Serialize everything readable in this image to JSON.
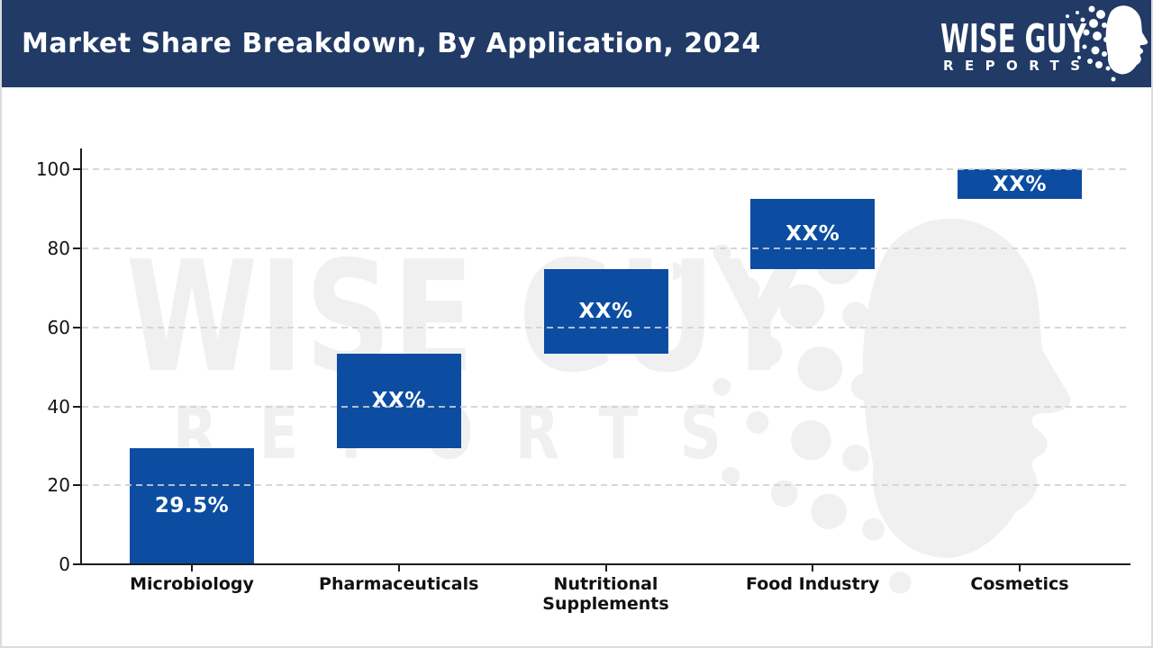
{
  "header": {
    "title": "Market Share Breakdown, By Application, 2024",
    "logo": {
      "line1": "WISE GUY",
      "line2": "REPORTS"
    }
  },
  "watermark": {
    "line1": "WISE GUY",
    "line2": "REPORTS"
  },
  "colors": {
    "header_bg": "#213a66",
    "bar": "#0c4da2",
    "bar_label": "#ffffff",
    "grid": "#d0d0d0",
    "axis": "#1c1c1c",
    "watermark": "#f0f0f1"
  },
  "chart_data": {
    "type": "bar",
    "subtype": "waterfall",
    "title": "Market Share Breakdown, By Application, 2024",
    "xlabel": "",
    "ylabel": "",
    "ylim": [
      0,
      105
    ],
    "yticks": [
      0,
      20,
      40,
      60,
      80,
      100
    ],
    "grid": "horizontal-dashed",
    "legend": "none",
    "bar_color": "#0c4da2",
    "categories": [
      "Microbiology",
      "Pharmaceuticals",
      "Nutritional Supplements",
      "Food Industry",
      "Cosmetics"
    ],
    "segments": [
      {
        "category": "Microbiology",
        "label_lines": [
          "Microbiology"
        ],
        "start": 0,
        "end": 29.5,
        "display": "29.5%"
      },
      {
        "category": "Pharmaceuticals",
        "label_lines": [
          "Pharmaceuticals"
        ],
        "start": 29.5,
        "end": 53.3,
        "display": "XX%"
      },
      {
        "category": "Nutritional Supplements",
        "label_lines": [
          "Nutritional",
          "Supplements"
        ],
        "start": 53.3,
        "end": 74.7,
        "display": "XX%"
      },
      {
        "category": "Food Industry",
        "label_lines": [
          "Food Industry"
        ],
        "start": 74.7,
        "end": 92.6,
        "display": "XX%"
      },
      {
        "category": "Cosmetics",
        "label_lines": [
          "Cosmetics"
        ],
        "start": 92.6,
        "end": 100,
        "display": "XX%"
      }
    ]
  }
}
